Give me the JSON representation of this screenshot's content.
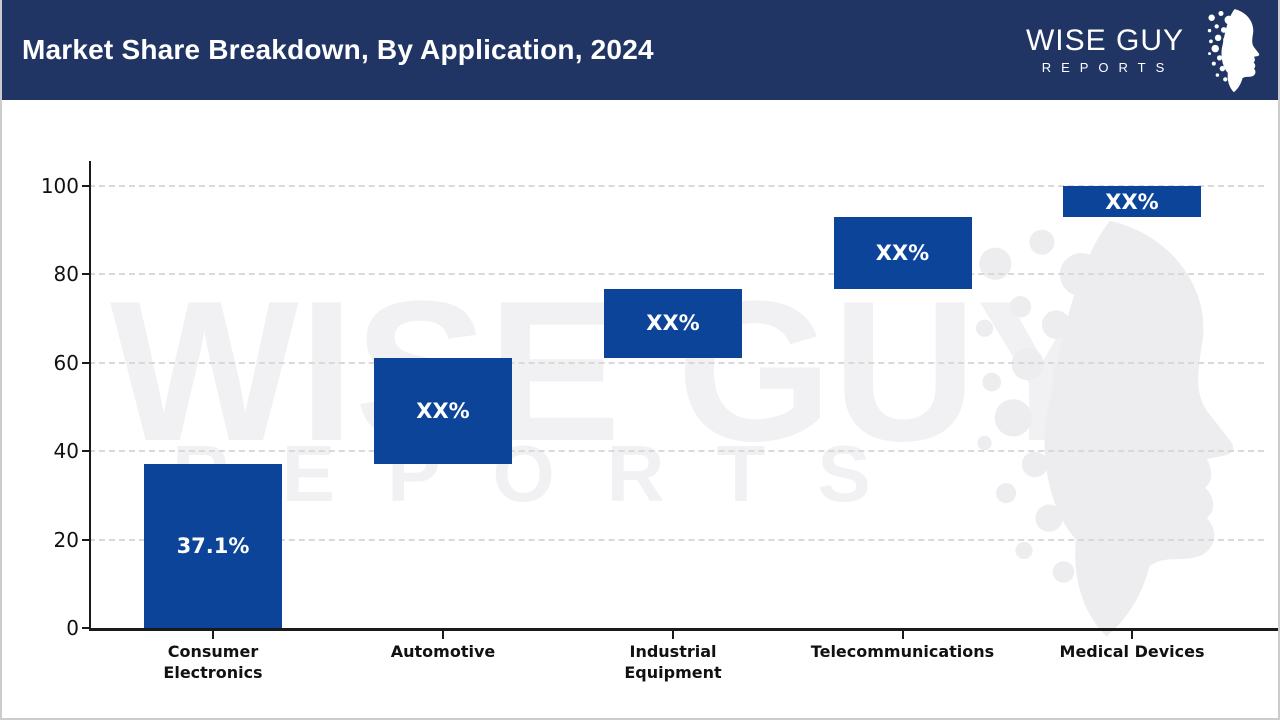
{
  "header": {
    "title": "Market Share Breakdown, By Application, 2024",
    "logo": {
      "name": "WISE GUY",
      "tagline": "REPORTS"
    }
  },
  "watermark": {
    "line1": "WISE GUY",
    "line2": "REPORTS"
  },
  "chart_data": {
    "type": "bar",
    "subtype": "waterfall",
    "title": "Market Share Breakdown, By Application, 2024",
    "categories": [
      "Consumer Electronics",
      "Automotive",
      "Industrial Equipment",
      "Telecommunications",
      "Medical Devices"
    ],
    "category_lines": [
      [
        "Consumer",
        "Electronics"
      ],
      [
        "Automotive"
      ],
      [
        "Industrial",
        "Equipment"
      ],
      [
        "Telecommunications"
      ],
      [
        "Medical Devices"
      ]
    ],
    "segments": [
      [
        0,
        37.1
      ],
      [
        37.1,
        61.1
      ],
      [
        61.1,
        76.8
      ],
      [
        76.8,
        92.9
      ],
      [
        92.9,
        100
      ]
    ],
    "values_percent": [
      37.1,
      24.0,
      15.7,
      16.1,
      7.1
    ],
    "bar_labels": [
      "37.1%",
      "XX%",
      "XX%",
      "XX%",
      "XX%"
    ],
    "yticks": [
      0,
      20,
      40,
      60,
      80,
      100
    ],
    "ylim": [
      0,
      105
    ],
    "xlabel": "",
    "ylabel": "",
    "grid": "horizontal-dashed",
    "legend": "none",
    "bar_color": "#0c4499",
    "bar_label_color": "#ffffff"
  },
  "colors": {
    "header_bg": "#213564",
    "header_text": "#ffffff",
    "page_border": "#cccccc",
    "grid_line": "#d9d9d9",
    "axis": "#1a1a1a",
    "tick_text": "#111111",
    "watermark": "#f1f1f4",
    "watermark_head": "#ededf0"
  }
}
